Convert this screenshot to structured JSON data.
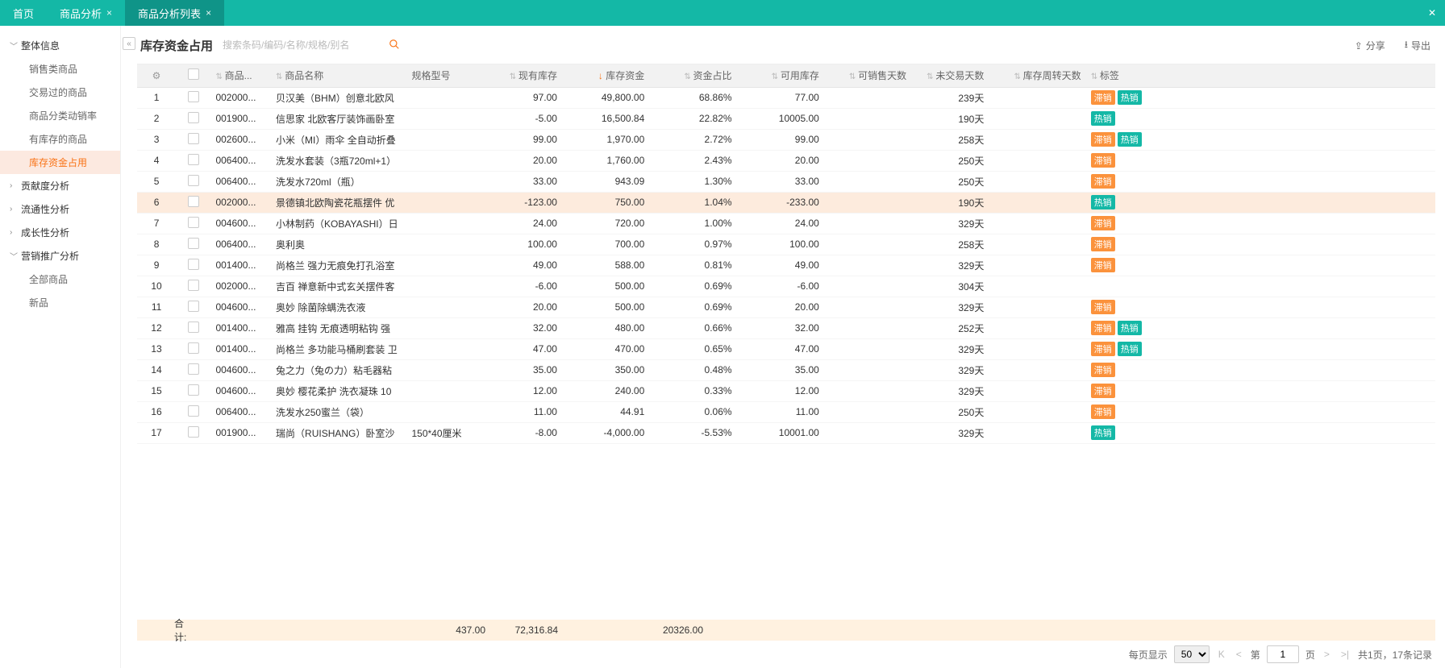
{
  "colors": {
    "brand": "#14B8A6",
    "brandDark": "#0F9488",
    "accent": "#F97316",
    "tagOrange": "#FB923C",
    "tagTeal": "#14B8A6",
    "tagRed": "#ef5b5b",
    "rowHighlight": "#FDEBDD",
    "totalsBg": "#FFF1E0"
  },
  "topTabs": {
    "tabs": [
      {
        "label": "首页",
        "closable": false,
        "active": false
      },
      {
        "label": "商品分析",
        "closable": true,
        "active": false
      },
      {
        "label": "商品分析列表",
        "closable": true,
        "active": true
      }
    ]
  },
  "sidebar": {
    "groups": [
      {
        "label": "整体信息",
        "expanded": true,
        "items": [
          {
            "label": "销售类商品"
          },
          {
            "label": "交易过的商品"
          },
          {
            "label": "商品分类动销率"
          },
          {
            "label": "有库存的商品"
          },
          {
            "label": "库存资金占用",
            "active": true
          }
        ]
      },
      {
        "label": "贡献度分析",
        "expanded": false,
        "items": []
      },
      {
        "label": "流通性分析",
        "expanded": false,
        "items": []
      },
      {
        "label": "成长性分析",
        "expanded": false,
        "items": []
      },
      {
        "label": "营销推广分析",
        "expanded": true,
        "items": [
          {
            "label": "全部商品"
          },
          {
            "label": "新品"
          }
        ]
      }
    ]
  },
  "header": {
    "title": "库存资金占用",
    "searchPlaceholder": "搜索条码/编码/名称/规格/别名",
    "shareLabel": "分享",
    "exportLabel": "导出"
  },
  "table": {
    "columns": {
      "idx": "",
      "code": "商品...",
      "name": "商品名称",
      "spec": "规格型号",
      "stock": "现有库存",
      "fund": "库存资金",
      "pct": "资金占比",
      "avail": "可用库存",
      "sell": "可销售天数",
      "notrade": "未交易天数",
      "turn": "库存周转天数",
      "tags": "标签"
    },
    "rows": [
      {
        "idx": 1,
        "code": "002000...",
        "name": "贝汉美（BHM）创意北欧风",
        "spec": "",
        "stock": "97.00",
        "fund": "49,800.00",
        "pct": "68.86%",
        "avail": "77.00",
        "sell": "",
        "notrade": "239天",
        "turn": "",
        "tags": [
          "滞销",
          "热销"
        ]
      },
      {
        "idx": 2,
        "code": "001900...",
        "name": "信思家 北欧客厅装饰画卧室",
        "spec": "",
        "stock": "-5.00",
        "fund": "16,500.84",
        "pct": "22.82%",
        "avail": "10005.00",
        "sell": "",
        "notrade": "190天",
        "turn": "",
        "tags": [
          "热销"
        ]
      },
      {
        "idx": 3,
        "code": "002600...",
        "name": "小米（MI）雨伞 全自动折叠",
        "spec": "",
        "stock": "99.00",
        "fund": "1,970.00",
        "pct": "2.72%",
        "avail": "99.00",
        "sell": "",
        "notrade": "258天",
        "turn": "",
        "tags": [
          "滞销",
          "热销"
        ]
      },
      {
        "idx": 4,
        "code": "006400...",
        "name": "洗发水套装（3瓶720ml+1）",
        "spec": "",
        "stock": "20.00",
        "fund": "1,760.00",
        "pct": "2.43%",
        "avail": "20.00",
        "sell": "",
        "notrade": "250天",
        "turn": "",
        "tags": [
          "滞销"
        ]
      },
      {
        "idx": 5,
        "code": "006400...",
        "name": "洗发水720ml（瓶）",
        "spec": "",
        "stock": "33.00",
        "fund": "943.09",
        "pct": "1.30%",
        "avail": "33.00",
        "sell": "",
        "notrade": "250天",
        "turn": "",
        "tags": [
          "滞销"
        ]
      },
      {
        "idx": 6,
        "hl": true,
        "code": "002000...",
        "name": "景德镇北欧陶瓷花瓶摆件 优",
        "spec": "",
        "stock": "-123.00",
        "fund": "750.00",
        "pct": "1.04%",
        "avail": "-233.00",
        "sell": "",
        "notrade": "190天",
        "turn": "",
        "tags": [
          "热销"
        ]
      },
      {
        "idx": 7,
        "code": "004600...",
        "name": "小林制药（KOBAYASHI）日",
        "spec": "",
        "stock": "24.00",
        "fund": "720.00",
        "pct": "1.00%",
        "avail": "24.00",
        "sell": "",
        "notrade": "329天",
        "turn": "",
        "tags": [
          "滞销"
        ]
      },
      {
        "idx": 8,
        "code": "006400...",
        "name": "奥利奥",
        "spec": "",
        "stock": "100.00",
        "fund": "700.00",
        "pct": "0.97%",
        "avail": "100.00",
        "sell": "",
        "notrade": "258天",
        "turn": "",
        "tags": [
          "滞销"
        ]
      },
      {
        "idx": 9,
        "code": "001400...",
        "name": "尚格兰 强力无痕免打孔浴室",
        "spec": "",
        "stock": "49.00",
        "fund": "588.00",
        "pct": "0.81%",
        "avail": "49.00",
        "sell": "",
        "notrade": "329天",
        "turn": "",
        "tags": [
          "滞销"
        ]
      },
      {
        "idx": 10,
        "code": "002000...",
        "name": "吉百 禅意新中式玄关摆件客",
        "spec": "",
        "stock": "-6.00",
        "fund": "500.00",
        "pct": "0.69%",
        "avail": "-6.00",
        "sell": "",
        "notrade": "304天",
        "turn": "",
        "tags": []
      },
      {
        "idx": 11,
        "code": "004600...",
        "name": "奥妙 除菌除螨洗衣液",
        "spec": "",
        "stock": "20.00",
        "fund": "500.00",
        "pct": "0.69%",
        "avail": "20.00",
        "sell": "",
        "notrade": "329天",
        "turn": "",
        "tags": [
          "滞销"
        ]
      },
      {
        "idx": 12,
        "code": "001400...",
        "name": "雅高 挂钩 无痕透明粘钩 强",
        "spec": "",
        "stock": "32.00",
        "fund": "480.00",
        "pct": "0.66%",
        "avail": "32.00",
        "sell": "",
        "notrade": "252天",
        "turn": "",
        "tags": [
          "滞销",
          "热销"
        ]
      },
      {
        "idx": 13,
        "code": "001400...",
        "name": "尚格兰 多功能马桶刷套装 卫",
        "spec": "",
        "stock": "47.00",
        "fund": "470.00",
        "pct": "0.65%",
        "avail": "47.00",
        "sell": "",
        "notrade": "329天",
        "turn": "",
        "tags": [
          "滞销",
          "热销"
        ]
      },
      {
        "idx": 14,
        "code": "004600...",
        "name": "兔之力（兔の力）粘毛器粘",
        "spec": "",
        "stock": "35.00",
        "fund": "350.00",
        "pct": "0.48%",
        "avail": "35.00",
        "sell": "",
        "notrade": "329天",
        "turn": "",
        "tags": [
          "滞销"
        ]
      },
      {
        "idx": 15,
        "code": "004600...",
        "name": "奥妙 樱花柔护 洗衣凝珠 10",
        "spec": "",
        "stock": "12.00",
        "fund": "240.00",
        "pct": "0.33%",
        "avail": "12.00",
        "sell": "",
        "notrade": "329天",
        "turn": "",
        "tags": [
          "滞销"
        ]
      },
      {
        "idx": 16,
        "code": "006400...",
        "name": "洗发水250蜜兰（袋）",
        "spec": "",
        "stock": "11.00",
        "fund": "44.91",
        "pct": "0.06%",
        "avail": "11.00",
        "sell": "",
        "notrade": "250天",
        "turn": "",
        "tags": [
          "滞销"
        ]
      },
      {
        "idx": 17,
        "code": "001900...",
        "name": "瑞尚（RUISHANG）卧室沙",
        "spec": "150*40厘米",
        "stock": "-8.00",
        "fund": "-4,000.00",
        "pct": "-5.53%",
        "avail": "10001.00",
        "sell": "",
        "notrade": "329天",
        "turn": "",
        "tags": [
          "热销"
        ]
      }
    ],
    "totals": {
      "label": "合计:",
      "stock": "437.00",
      "fund": "72,316.84",
      "avail": "20326.00"
    }
  },
  "pager": {
    "perPageLabel": "每页显示",
    "perPage": "50",
    "pagePrefix": "第",
    "page": "1",
    "pageSuffix": "页",
    "summary": "共1页，17条记录"
  }
}
